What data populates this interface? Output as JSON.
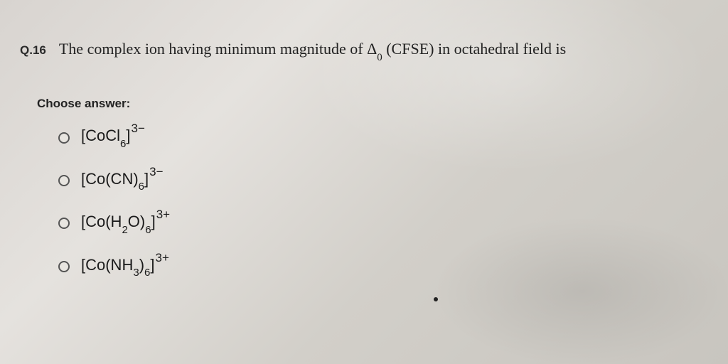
{
  "question": {
    "number": "Q.16",
    "text_before_delta": "The complex ion having minimum magnitude of ",
    "delta": "Δ",
    "delta_sub": "0",
    "text_after_delta": " (CFSE) in octahedral field is"
  },
  "choose_label": "Choose answer:",
  "options": [
    {
      "prefix": "[CoCl",
      "sub": "6",
      "suffix": "]",
      "charge": "3−"
    },
    {
      "prefix": "[Co(CN)",
      "sub": "6",
      "suffix": "]",
      "charge": "3−"
    },
    {
      "prefix": "[Co(H",
      "sub1": "2",
      "mid": "O)",
      "sub2": "6",
      "suffix": "]",
      "charge": "3+"
    },
    {
      "prefix": "[Co(NH",
      "sub1": "3",
      "mid": ")",
      "sub2": "6",
      "suffix": "]",
      "charge": "3+"
    }
  ],
  "colors": {
    "text": "#222222",
    "radio_border": "#555555"
  }
}
